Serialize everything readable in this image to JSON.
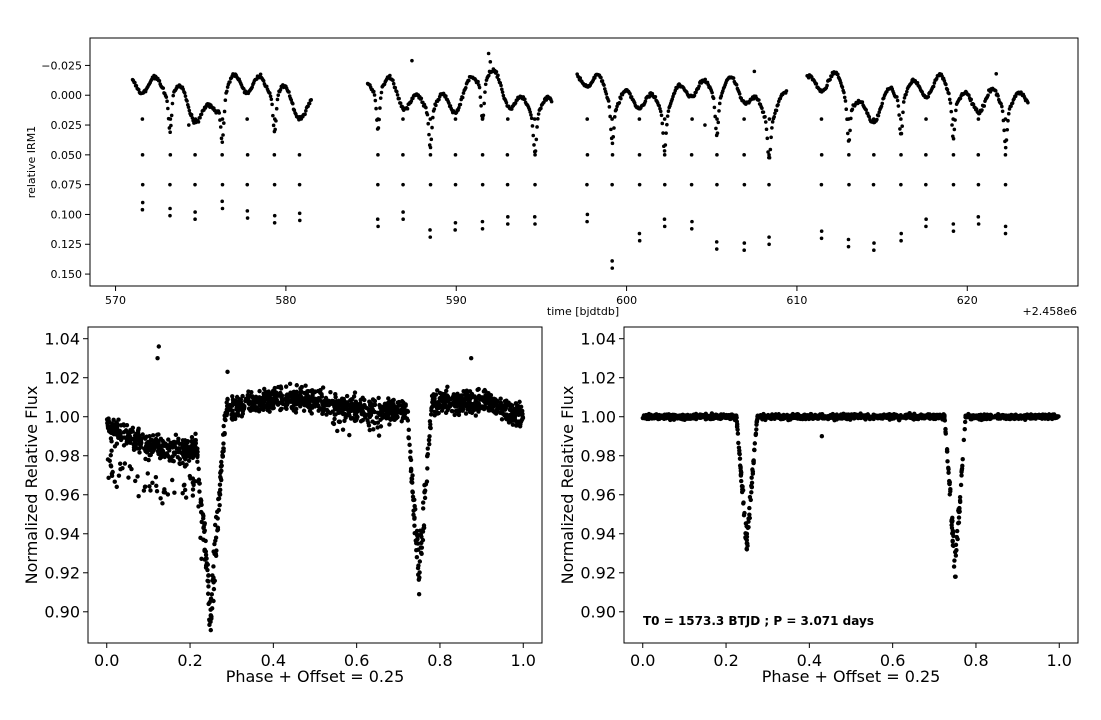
{
  "chart_data": [
    {
      "type": "scatter",
      "xlabel": "time [bjdtdb]",
      "ylabel": "relative IRM1",
      "offset_label": "+2.458e6",
      "xlim": [
        568.5,
        626.5
      ],
      "ylim": [
        0.16,
        -0.048
      ],
      "y_inverted": true,
      "xticks": [
        570,
        580,
        590,
        600,
        610,
        620
      ],
      "yticks": [
        -0.025,
        0.0,
        0.025,
        0.05,
        0.075,
        0.1,
        0.125,
        0.15
      ],
      "ytick_labels": [
        "−0.025",
        "0.000",
        "0.025",
        "0.050",
        "0.075",
        "0.100",
        "0.125",
        "0.150"
      ],
      "marker_color": "#000000",
      "segments": [
        [
          571.0,
          581.5
        ],
        [
          584.8,
          595.6
        ],
        [
          597.1,
          609.4
        ],
        [
          610.6,
          623.6
        ]
      ],
      "eclipse_times": [
        571.59,
        573.2,
        574.67,
        576.27,
        577.74,
        579.34,
        580.81,
        585.41,
        586.88,
        588.48,
        589.95,
        591.55,
        593.02,
        594.62,
        597.69,
        599.16,
        600.76,
        602.23,
        603.83,
        605.3,
        606.9,
        608.37,
        611.44,
        613.04,
        614.51,
        616.11,
        617.58,
        619.18,
        620.65,
        622.25
      ],
      "eclipse_depth": [
        0.096,
        0.101,
        0.104,
        0.095,
        0.103,
        0.107,
        0.105,
        0.11,
        0.104,
        0.119,
        0.113,
        0.112,
        0.108,
        0.108,
        0.106,
        0.145,
        0.122,
        0.11,
        0.112,
        0.129,
        0.13,
        0.125,
        0.12,
        0.127,
        0.13,
        0.122,
        0.11,
        0.114,
        0.108,
        0.116
      ],
      "outliers": [
        {
          "x": 591.9,
          "y": -0.035
        },
        {
          "x": 592.0,
          "y": -0.028
        },
        {
          "x": 587.4,
          "y": -0.029
        },
        {
          "x": 607.5,
          "y": -0.02
        },
        {
          "x": 621.7,
          "y": -0.018
        },
        {
          "x": 574.3,
          "y": 0.025
        },
        {
          "x": 604.6,
          "y": 0.025
        }
      ]
    },
    {
      "type": "scatter",
      "xlabel": "Phase + Offset = 0.25",
      "ylabel": "Normalized Relative Flux",
      "xlim": [
        -0.045,
        1.045
      ],
      "ylim": [
        0.884,
        1.046
      ],
      "xticks": [
        0.0,
        0.2,
        0.4,
        0.6,
        0.8,
        1.0
      ],
      "xtick_labels": [
        "0.0",
        "0.2",
        "0.4",
        "0.6",
        "0.8",
        "1.0"
      ],
      "yticks": [
        0.9,
        0.92,
        0.94,
        0.96,
        0.98,
        1.0,
        1.02,
        1.04
      ],
      "ytick_labels": [
        "0.90",
        "0.92",
        "0.94",
        "0.96",
        "0.98",
        "1.00",
        "1.02",
        "1.04"
      ],
      "marker_color": "#000000",
      "primary_eclipse": {
        "phase": 0.25,
        "min": 0.898
      },
      "secondary_eclipse": {
        "phase": 0.75,
        "min": 0.909
      },
      "band": [
        [
          0.0,
          0.995
        ],
        [
          0.1,
          0.985
        ],
        [
          0.2,
          0.982
        ],
        [
          0.3,
          1.005
        ],
        [
          0.45,
          1.01
        ],
        [
          0.6,
          1.004
        ],
        [
          0.7,
          1.003
        ],
        [
          0.8,
          1.007
        ],
        [
          0.9,
          1.008
        ],
        [
          1.0,
          1.0
        ]
      ],
      "outliers": [
        {
          "x": 0.125,
          "y": 1.036
        },
        {
          "x": 0.122,
          "y": 1.03
        },
        {
          "x": 0.29,
          "y": 1.023
        },
        {
          "x": 0.875,
          "y": 1.03
        }
      ]
    },
    {
      "type": "scatter",
      "xlabel": "Phase + Offset = 0.25",
      "ylabel": "Normalized Relative Flux",
      "annotation": "T0 = 1573.3 BTJD ; P = 3.071 days",
      "xlim": [
        -0.045,
        1.045
      ],
      "ylim": [
        0.884,
        1.046
      ],
      "xticks": [
        0.0,
        0.2,
        0.4,
        0.6,
        0.8,
        1.0
      ],
      "xtick_labels": [
        "0.0",
        "0.2",
        "0.4",
        "0.6",
        "0.8",
        "1.0"
      ],
      "yticks": [
        0.9,
        0.92,
        0.94,
        0.96,
        0.98,
        1.0,
        1.02,
        1.04
      ],
      "ytick_labels": [
        "0.90",
        "0.92",
        "0.94",
        "0.96",
        "0.98",
        "1.00",
        "1.02",
        "1.04"
      ],
      "marker_color": "#000000",
      "baseline": 1.0,
      "primary_eclipse": {
        "phase": 0.25,
        "min": 0.932
      },
      "secondary_eclipse": {
        "phase": 0.75,
        "min": 0.918
      },
      "outliers": [
        {
          "x": 0.43,
          "y": 0.99
        }
      ]
    }
  ]
}
